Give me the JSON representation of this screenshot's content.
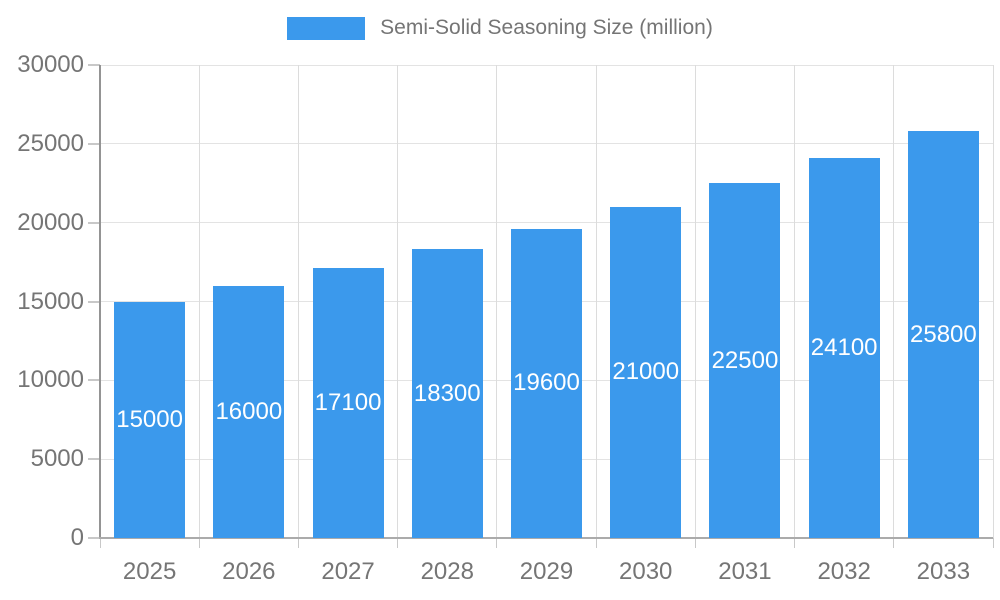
{
  "chart_data": {
    "type": "bar",
    "title": "Semi-Solid Seasoning Size (million)",
    "series_name": "Semi-Solid Seasoning Size (million)",
    "categories": [
      "2025",
      "2026",
      "2027",
      "2028",
      "2029",
      "2030",
      "2031",
      "2032",
      "2033"
    ],
    "values": [
      15000,
      16000,
      17100,
      18300,
      19600,
      21000,
      22500,
      24100,
      25800
    ],
    "value_labels": [
      "15000",
      "16000",
      "17100",
      "18300",
      "19600",
      "21000",
      "22500",
      "24100",
      "25800"
    ],
    "xlabel": "",
    "ylabel": "",
    "ylim": [
      0,
      30000
    ],
    "yticks": [
      0,
      5000,
      10000,
      15000,
      20000,
      25000,
      30000
    ],
    "ytick_labels": [
      "0",
      "5000",
      "10000",
      "15000",
      "20000",
      "25000",
      "30000"
    ],
    "grid": true,
    "legend_position": "top-center",
    "colors": {
      "bar": "#3b99ec",
      "value_label": "#ffffff",
      "axis_label": "#757575",
      "gridline": "#e3e3e3",
      "axis_line": "#9e9e9e",
      "background": "#ffffff"
    }
  }
}
